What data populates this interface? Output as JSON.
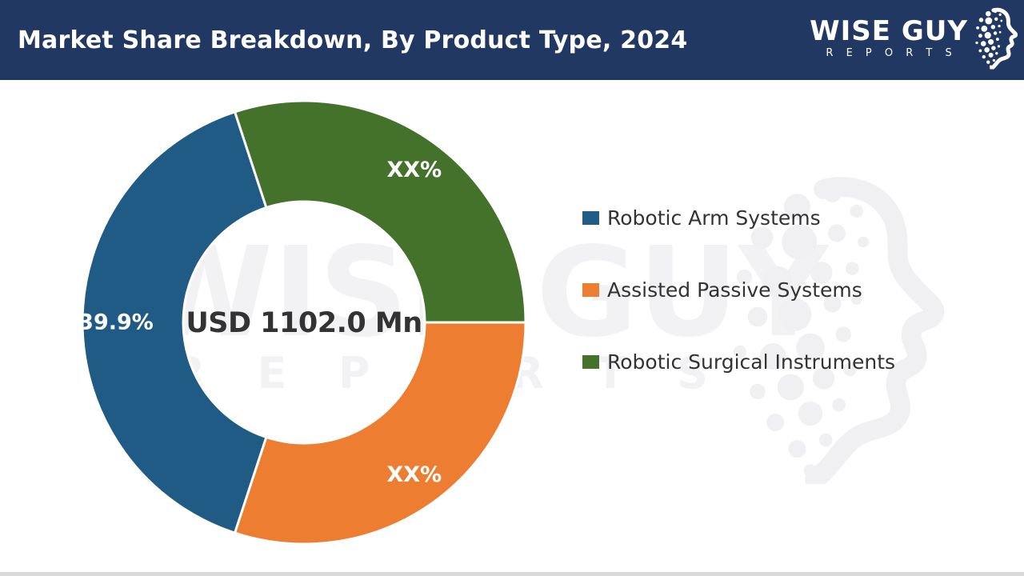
{
  "header": {
    "title": "Market Share Breakdown, By Product Type, 2024",
    "bg_color": "#213863",
    "logo": {
      "name": "WISE GUY",
      "tagline": "R E P O R T S"
    }
  },
  "watermark": {
    "line1": "WISE GUY",
    "line2": "R E P O R T S"
  },
  "chart_data": {
    "type": "pie",
    "subtype": "donut",
    "title": "Market Share Breakdown, By Product Type, 2024",
    "center_label": "USD 1102.0 Mn",
    "start_angle_deg": 108.18,
    "direction": "counterclockwise",
    "inner_radius_ratio": 0.545,
    "legend_position": "right",
    "slices": [
      {
        "label": "Robotic Arm Systems",
        "display_value": "39.9%",
        "value_pct": 39.9,
        "color": "#1F5B84"
      },
      {
        "label": "Assisted Passive Systems",
        "display_value": "XX%",
        "value_pct": 30.05,
        "color": "#ED7D31"
      },
      {
        "label": "Robotic Surgical Instruments",
        "display_value": "XX%",
        "value_pct": 30.05,
        "color": "#44722A"
      }
    ]
  },
  "colors": {
    "header_bg": "#213863",
    "text_dark": "#333333",
    "watermark": "#F2F2F4",
    "footer_bar": "#D9D9D9"
  }
}
